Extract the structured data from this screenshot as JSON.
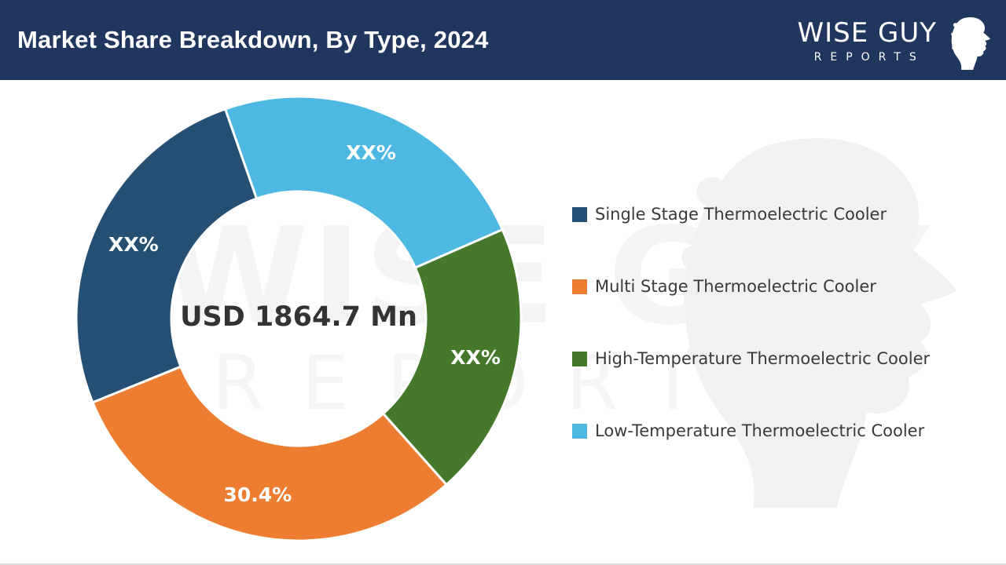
{
  "header": {
    "title": "Market Share Breakdown, By Type, 2024",
    "bg_color": "#21365f",
    "logo": {
      "line1": "WISE GUY",
      "line2": "REPORTS"
    }
  },
  "watermark": {
    "line1": "WISE GUY",
    "line2": "REPORTS"
  },
  "chart_data": {
    "type": "pie",
    "title": "Market Share Breakdown, By Type, 2024",
    "center_label": "USD 1864.7 Mn",
    "start_angle_deg": -19.3,
    "direction": "clockwise",
    "draw_order": "reversed",
    "donut_inner_ratio": 0.573,
    "legend_position": "right",
    "segments": [
      {
        "name": "Single Stage Thermoelectric Cooler",
        "value": 25.8,
        "label": "XX%",
        "color": "#254f73"
      },
      {
        "name": "Multi Stage Thermoelectric Cooler",
        "value": 30.4,
        "label": "30.4%",
        "color": "#ed7d31"
      },
      {
        "name": "High-Temperature Thermoelectric Cooler",
        "value": 20.0,
        "label": "XX%",
        "color": "#45782b"
      },
      {
        "name": "Low-Temperature Thermoelectric Cooler",
        "value": 23.8,
        "label": "XX%",
        "color": "#4db8e2"
      }
    ]
  },
  "colors": {
    "header_bg": "#21365f",
    "center_text": "#333333",
    "legend_text": "#3a3a3a",
    "watermark": "#f4f4f4",
    "bottom_line": "#d9d9d9"
  }
}
